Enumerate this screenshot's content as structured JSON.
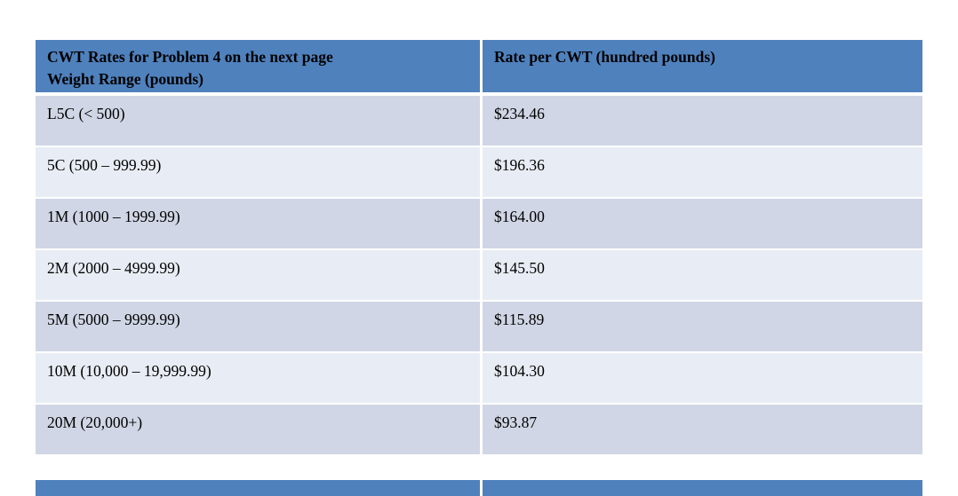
{
  "colors": {
    "header_bg": "#4f81bd",
    "band_dark": "#d0d6e5",
    "band_light": "#e8ecf4",
    "separator": "#ffffff",
    "text": "#000000",
    "page_bg": "#ffffff"
  },
  "table": {
    "header": {
      "weight_col_line1": "CWT Rates for Problem 4 on the next page",
      "weight_col_line2": "Weight Range (pounds)",
      "rate_col": "Rate per CWT (hundred pounds)"
    },
    "rows": [
      {
        "weight_range": "L5C (< 500)",
        "rate": "$234.46"
      },
      {
        "weight_range": "5C (500 – 999.99)",
        "rate": "$196.36"
      },
      {
        "weight_range": "1M (1000 – 1999.99)",
        "rate": "$164.00"
      },
      {
        "weight_range": "2M (2000 – 4999.99)",
        "rate": "$145.50"
      },
      {
        "weight_range": "5M (5000 – 9999.99)",
        "rate": "$115.89"
      },
      {
        "weight_range": "10M (10,000 – 19,999.99)",
        "rate": "$104.30"
      },
      {
        "weight_range": "20M (20,000+)",
        "rate": "$93.87"
      }
    ]
  },
  "next_table_strip": {
    "description": "top edge of next table header bar, partially visible at bottom of screenshot"
  }
}
